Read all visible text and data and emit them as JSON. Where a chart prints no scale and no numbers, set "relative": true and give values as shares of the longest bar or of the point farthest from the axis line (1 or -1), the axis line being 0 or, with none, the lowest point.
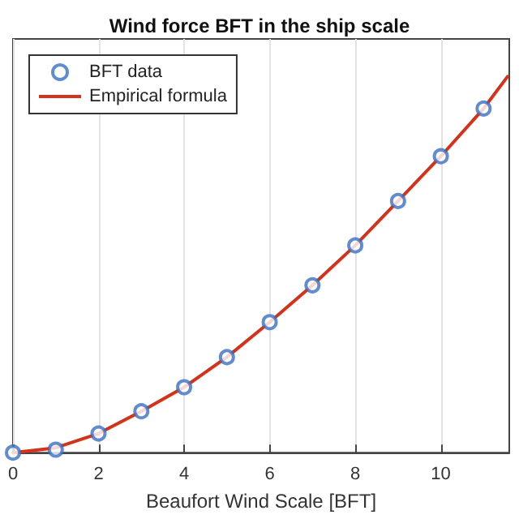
{
  "chart_data": {
    "type": "scatter",
    "title": "Wind force BFT in the ship scale",
    "xlabel": "Beaufort Wind Scale [BFT]",
    "relative": true,
    "xlim": [
      0,
      11.6
    ],
    "xticks": [
      0,
      2,
      4,
      6,
      8,
      10
    ],
    "grid": "x",
    "legend": "top left",
    "series": [
      {
        "name": "BFT data",
        "marker": "circle",
        "color": "#3a6fc4",
        "x": [
          0,
          1,
          2,
          3,
          4,
          5,
          6,
          7,
          8,
          9,
          10,
          11
        ],
        "values": [
          0,
          0.008,
          0.051,
          0.11,
          0.174,
          0.254,
          0.347,
          0.445,
          0.551,
          0.669,
          0.788,
          0.915
        ]
      },
      {
        "name": "Empirical formula",
        "type": "line",
        "marker": "none",
        "line_style": "solid",
        "color": "#d4321a",
        "x": [
          0,
          1,
          2,
          3,
          4,
          5,
          6,
          7,
          8,
          9,
          10,
          11,
          11.56
        ],
        "values": [
          0,
          0.013,
          0.051,
          0.11,
          0.174,
          0.254,
          0.347,
          0.445,
          0.551,
          0.669,
          0.788,
          0.915,
          1
        ]
      }
    ]
  }
}
